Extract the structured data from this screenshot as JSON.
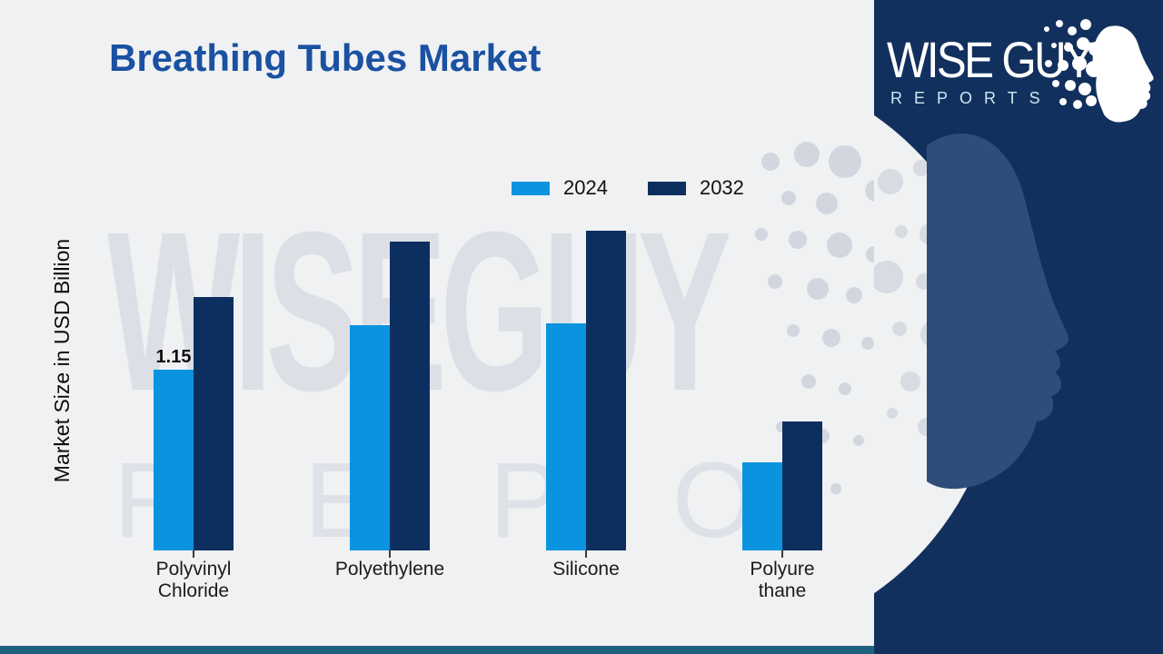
{
  "title": "Breathing Tubes Market",
  "watermark": {
    "line1": "WISEGUY",
    "line2": "REPORTS"
  },
  "logo": {
    "line1": "WISE GUY",
    "line2": "REPORTS"
  },
  "colors": {
    "title_blue": "#1a51a2",
    "series_2024": "#0a94e0",
    "series_2032": "#0d2f60",
    "panel_navy": "#12305e",
    "footer_teal": "#1e617f",
    "background": "#f0f1f2"
  },
  "chart_data": {
    "type": "bar",
    "title": "Breathing Tubes Market",
    "xlabel": "",
    "ylabel": "Market Size in USD Billion",
    "categories": [
      "Polyvinyl Chloride",
      "Polyethylene",
      "Silicone",
      "Polyurethane"
    ],
    "categories_wrapped": [
      "Polyvinyl\nChloride",
      "Polyethylene",
      "Silicone",
      "Polyure\nthane"
    ],
    "series": [
      {
        "name": "2024",
        "color": "#0a94e0",
        "values": [
          1.15,
          1.43,
          1.44,
          0.56
        ]
      },
      {
        "name": "2032",
        "color": "#0d2f60",
        "values": [
          1.61,
          1.96,
          2.03,
          0.82
        ]
      }
    ],
    "annotations": [
      {
        "group": 0,
        "series": 0,
        "text": "1.15"
      }
    ],
    "ylim": [
      0,
      2.2
    ],
    "grid": false,
    "legend_position": "top"
  }
}
